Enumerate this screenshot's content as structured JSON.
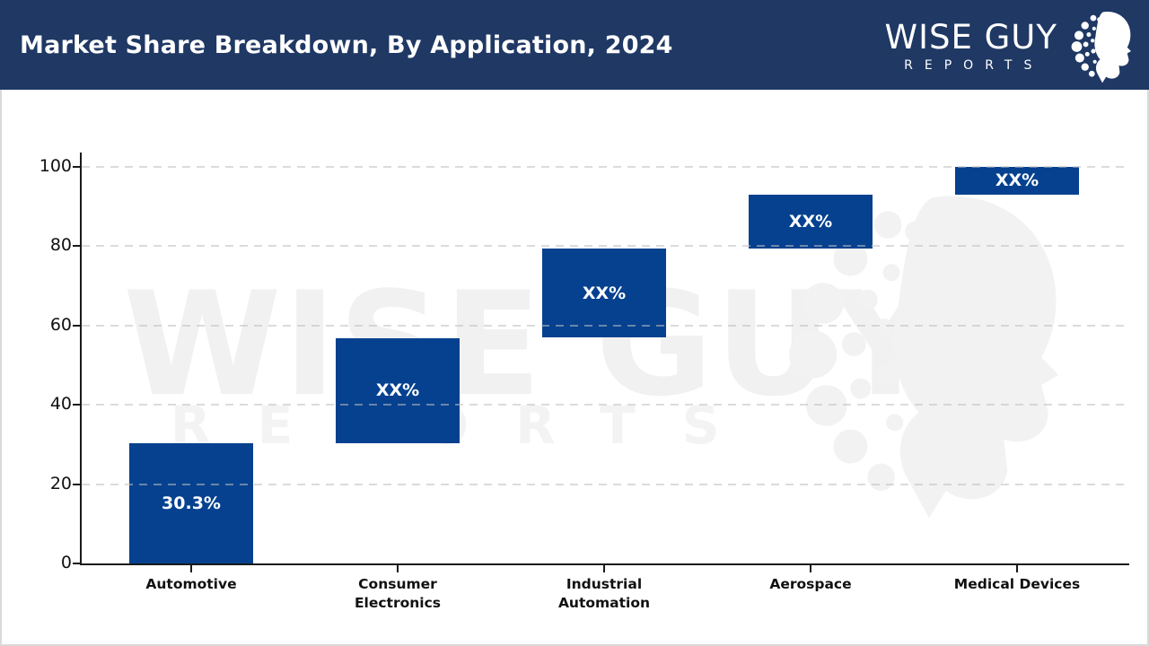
{
  "header": {
    "title": "Market Share Breakdown, By Application, 2024",
    "bg_color": "#1f3864",
    "logo": {
      "line1": "WISE GUY",
      "line2": "REPORTS"
    }
  },
  "watermark": {
    "line1": "WISE GUY",
    "line2": "REPORTS"
  },
  "chart_data": {
    "type": "bar",
    "subtype": "waterfall",
    "title": "Market Share Breakdown, By Application, 2024",
    "categories": [
      "Automotive",
      "Consumer\nElectronics",
      "Industrial\nAutomation",
      "Aerospace",
      "Medical Devices"
    ],
    "segments": [
      {
        "category": "Automotive",
        "start": 0,
        "end": 30.3,
        "label": "30.3%"
      },
      {
        "category": "Consumer Electronics",
        "start": 30.3,
        "end": 56.9,
        "label": "XX%"
      },
      {
        "category": "Industrial Automation",
        "start": 56.9,
        "end": 79.4,
        "label": "XX%"
      },
      {
        "category": "Aerospace",
        "start": 79.4,
        "end": 93.0,
        "label": "XX%"
      },
      {
        "category": "Medical Devices",
        "start": 93.0,
        "end": 100.0,
        "label": "XX%"
      }
    ],
    "ylim": [
      0,
      100
    ],
    "yticks": [
      0,
      20,
      40,
      60,
      80,
      100
    ],
    "grid": "horizontal-dashed",
    "legend": "none",
    "bar_color": "#05418f",
    "bar_label_color": "#ffffff",
    "axis_color": "#1a1a1a"
  }
}
